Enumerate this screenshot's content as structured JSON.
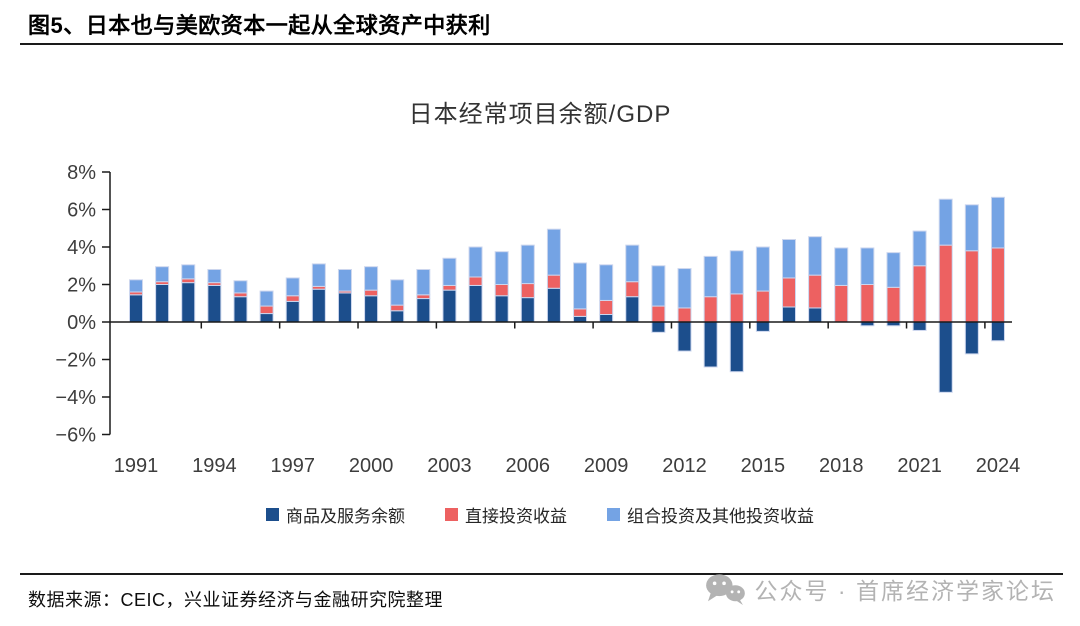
{
  "header": {
    "title": "图5、日本也与美欧资本一起从全球资产中获利"
  },
  "chart_data": {
    "type": "bar",
    "stacked": true,
    "title": "日本经常项目余额/GDP",
    "unit": "%",
    "ylim": [
      -6,
      8
    ],
    "ytick_step": 2,
    "ytick_labels": [
      "8%",
      "6%",
      "4%",
      "2%",
      "0%",
      "−2%",
      "−4%",
      "−6%"
    ],
    "xtick_labels": [
      "1991",
      "1994",
      "1997",
      "2000",
      "2003",
      "2006",
      "2009",
      "2012",
      "2015",
      "2018",
      "2021",
      "2024"
    ],
    "years": [
      1991,
      1992,
      1993,
      1994,
      1995,
      1996,
      1997,
      1998,
      1999,
      2000,
      2001,
      2002,
      2003,
      2004,
      2005,
      2006,
      2007,
      2008,
      2009,
      2010,
      2011,
      2012,
      2013,
      2014,
      2015,
      2016,
      2017,
      2018,
      2019,
      2020,
      2021,
      2022,
      2023,
      2024
    ],
    "series": [
      {
        "name": "商品及服务余额",
        "color": "#1c4e8c",
        "values": [
          1.45,
          2.0,
          2.1,
          1.95,
          1.35,
          0.45,
          1.1,
          1.75,
          1.55,
          1.4,
          0.6,
          1.25,
          1.7,
          1.95,
          1.4,
          1.3,
          1.8,
          0.3,
          0.4,
          1.35,
          -0.55,
          -1.55,
          -2.4,
          -2.65,
          -0.5,
          0.8,
          0.75,
          0.0,
          -0.2,
          -0.2,
          -0.45,
          -3.75,
          -1.7,
          -1.0
        ]
      },
      {
        "name": "直接投资收益",
        "color": "#ed6161",
        "values": [
          0.15,
          0.15,
          0.2,
          0.15,
          0.2,
          0.4,
          0.3,
          0.15,
          0.1,
          0.3,
          0.3,
          0.2,
          0.25,
          0.45,
          0.6,
          0.75,
          0.7,
          0.4,
          0.75,
          0.8,
          0.85,
          0.75,
          1.35,
          1.5,
          1.65,
          1.55,
          1.75,
          1.95,
          2.0,
          1.85,
          3.0,
          4.1,
          3.8,
          3.95
        ]
      },
      {
        "name": "组合投资及其他投资收益",
        "color": "#74a3e4",
        "values": [
          0.65,
          0.8,
          0.75,
          0.7,
          0.65,
          0.8,
          0.95,
          1.2,
          1.15,
          1.25,
          1.35,
          1.35,
          1.45,
          1.6,
          1.75,
          2.05,
          2.45,
          2.45,
          1.9,
          1.95,
          2.15,
          2.1,
          2.15,
          2.3,
          2.35,
          2.05,
          2.05,
          2.0,
          1.95,
          1.85,
          1.85,
          2.45,
          2.45,
          2.7
        ]
      }
    ],
    "legend_position": "bottom",
    "axis_color": "#1a1a1a",
    "tick_label_color": "#3d3d3d",
    "bar_outline_color": "#ccd6ee"
  },
  "footer": {
    "source": "数据来源：CEIC，兴业证券经济与金融研究院整理"
  },
  "watermark": {
    "icon": "wechat-icon",
    "text": "公众号 · 首席经济学家论坛"
  }
}
